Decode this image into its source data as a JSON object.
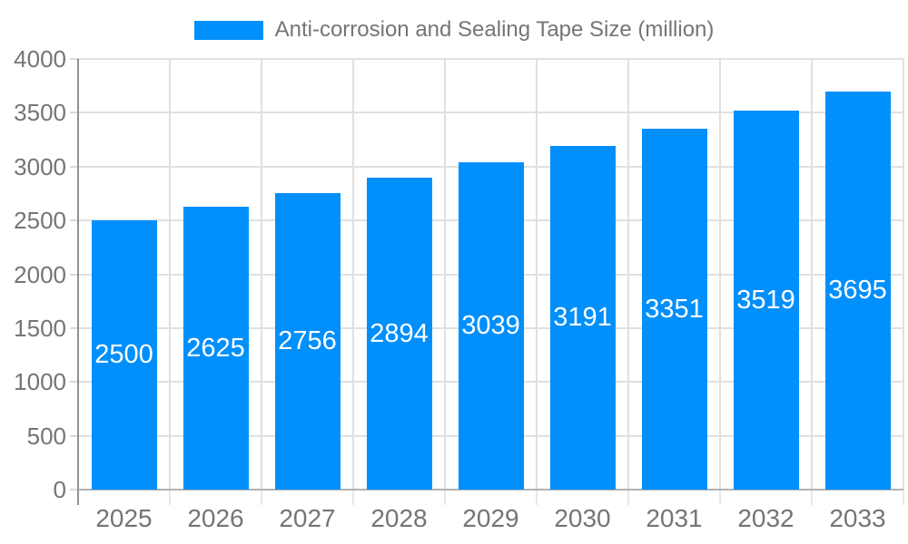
{
  "colors": {
    "bar": "#008FFB",
    "axis_text": "#757575",
    "data_label": "#ffffff",
    "grid": "#e0e0e0",
    "y_axis_line": "#919191",
    "x_axis_line": "#b2b2b2",
    "y_tick": "#d8d8d8",
    "x_tick": "#e8e8e8",
    "background": "#ffffff"
  },
  "legend": {
    "label": "Anti-corrosion and Sealing Tape Size (million)",
    "swatch_color": "#008FFB",
    "position": "top"
  },
  "chart_data": {
    "type": "bar",
    "title": "Anti-corrosion and Sealing Tape Size (million)",
    "categories": [
      "2025",
      "2026",
      "2027",
      "2028",
      "2029",
      "2030",
      "2031",
      "2032",
      "2033"
    ],
    "series": [
      {
        "name": "Anti-corrosion and Sealing Tape Size (million)",
        "values": [
          2500,
          2625,
          2756,
          2894,
          3039,
          3191,
          3351,
          3519,
          3695
        ]
      }
    ],
    "data_labels_shown": true,
    "data_label_position": "center-of-bar",
    "xlabel": "",
    "ylabel": "",
    "ylim": [
      0,
      4000
    ],
    "yticks": [
      0,
      500,
      1000,
      1500,
      2000,
      2500,
      3000,
      3500,
      4000
    ],
    "grid": "on",
    "legend_position": "top"
  }
}
